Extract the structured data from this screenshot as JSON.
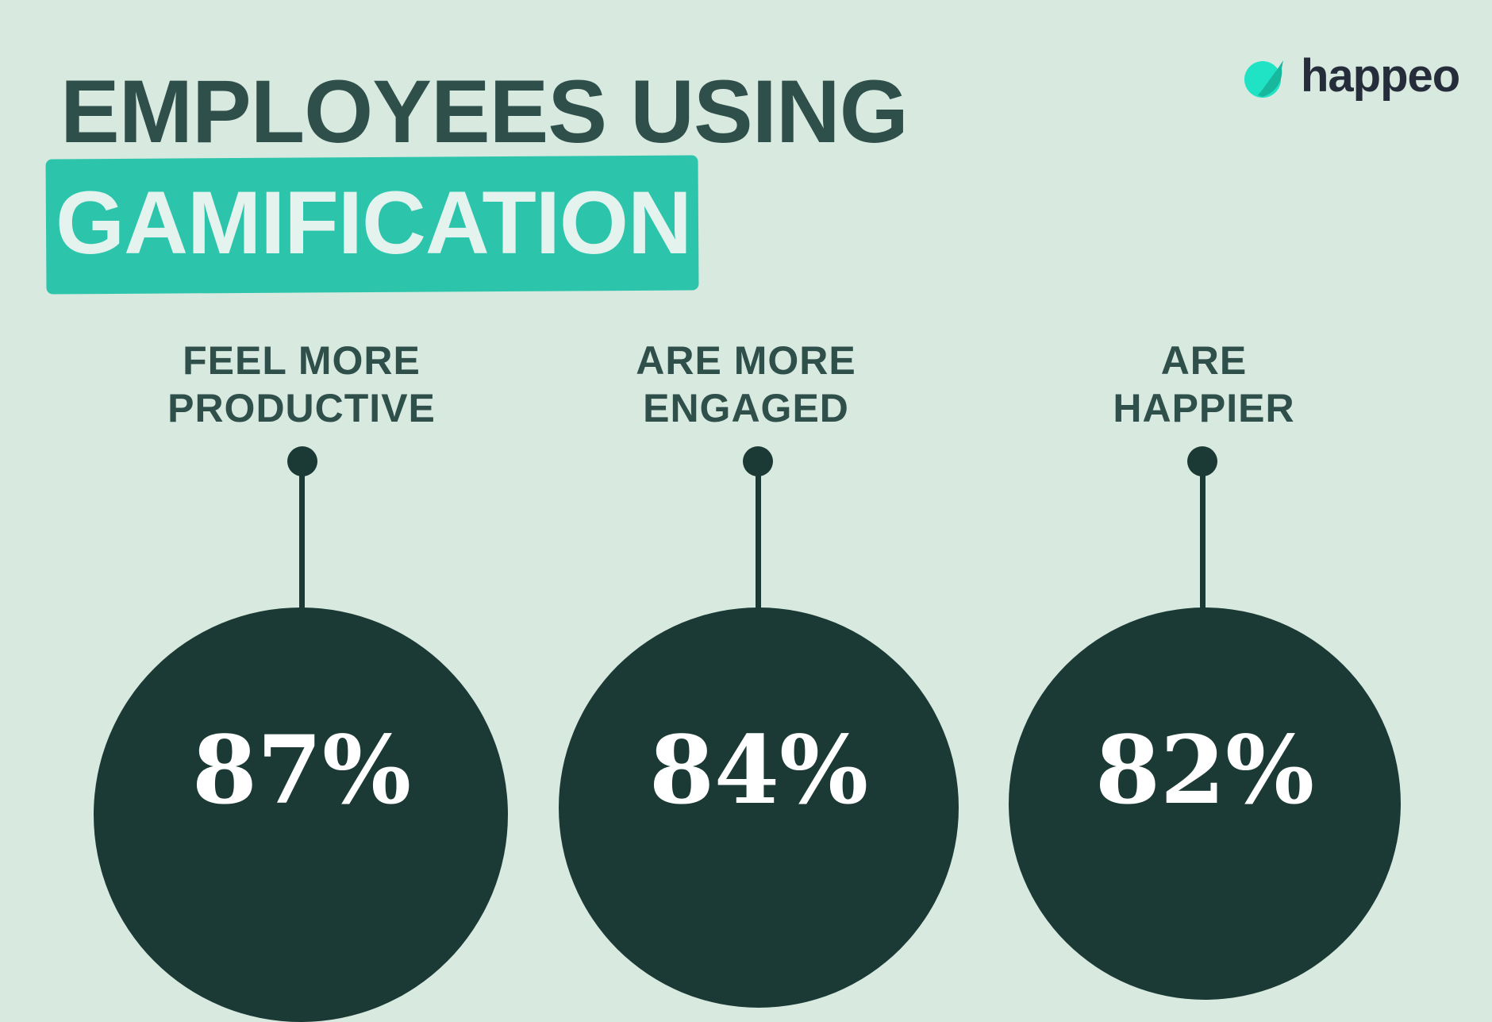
{
  "title": "EMPLOYEES USING",
  "highlight": "GAMIFICATION",
  "logo": {
    "text": "happeo",
    "color": "#1fd6b8"
  },
  "colors": {
    "background": "#d8e9e0",
    "accent": "#2cc5ac",
    "dark": "#1b3a35",
    "text": "#2f4f4a"
  },
  "stats": [
    {
      "line1": "FEEL MORE",
      "line2": "PRODUCTIVE",
      "value": "87%"
    },
    {
      "line1": "ARE MORE",
      "line2": "ENGAGED",
      "value": "84%"
    },
    {
      "line1": "ARE",
      "line2": "HAPPIER",
      "value": "82%"
    }
  ]
}
